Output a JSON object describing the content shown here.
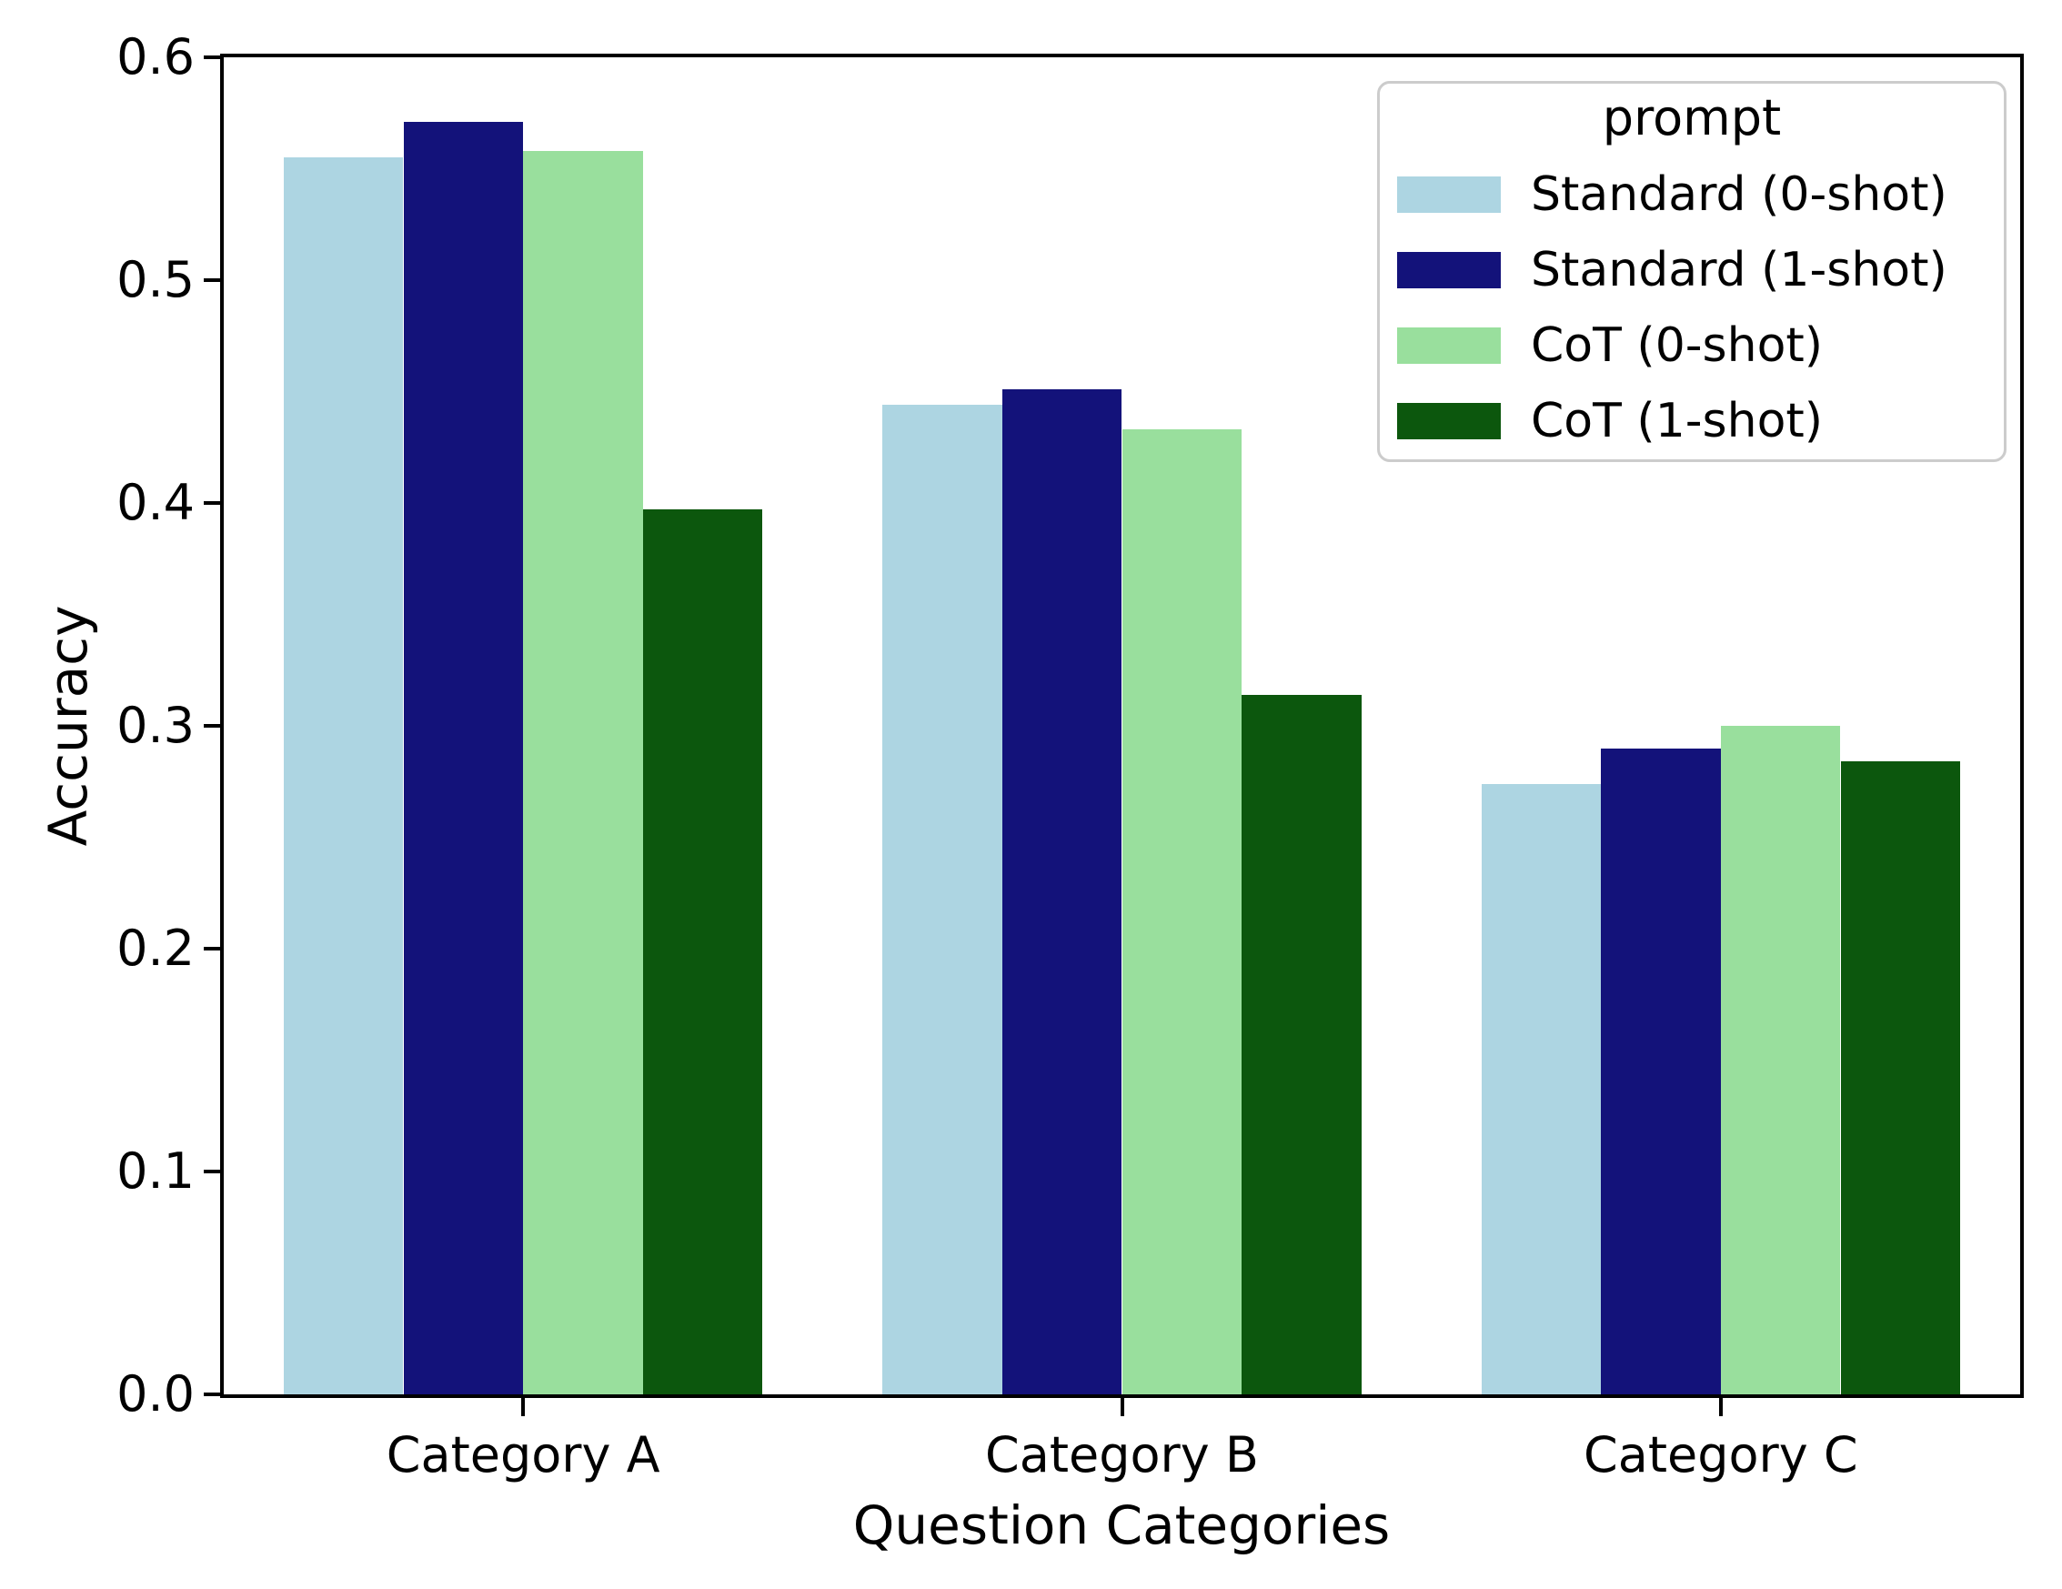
{
  "figure": {
    "background": "#ffffff",
    "spine_color": "#000000"
  },
  "chart_data": {
    "type": "bar",
    "title": "",
    "xlabel": "Question Categories",
    "ylabel": "Accuracy",
    "ylim": [
      0.0,
      0.6
    ],
    "y_ticks": [
      0.0,
      0.1,
      0.2,
      0.3,
      0.4,
      0.5,
      0.6
    ],
    "y_tick_labels": [
      "0.0",
      "0.1",
      "0.2",
      "0.3",
      "0.4",
      "0.5",
      "0.6"
    ],
    "categories": [
      "Category A",
      "Category B",
      "Category C"
    ],
    "series": [
      {
        "name": "Standard (0-shot)",
        "color": "#ADD5E2",
        "values": [
          0.555,
          0.444,
          0.274
        ]
      },
      {
        "name": "Standard (1-shot)",
        "color": "#13127A",
        "values": [
          0.571,
          0.451,
          0.29
        ]
      },
      {
        "name": "CoT (0-shot)",
        "color": "#99DF9D",
        "values": [
          0.558,
          0.433,
          0.3
        ]
      },
      {
        "name": "CoT (1-shot)",
        "color": "#0C570D",
        "values": [
          0.397,
          0.314,
          0.284
        ]
      }
    ],
    "legend": {
      "title": "prompt",
      "position": "upper right"
    },
    "grid": false,
    "bar_group_width": 0.8
  }
}
